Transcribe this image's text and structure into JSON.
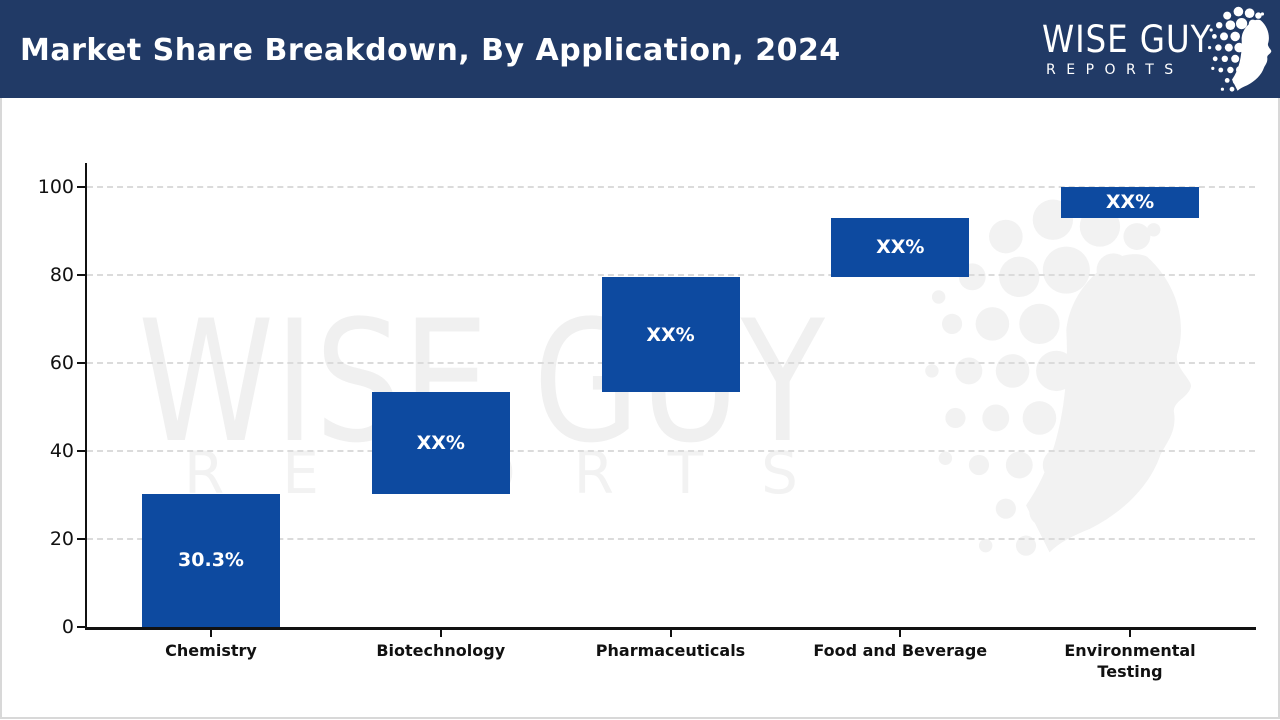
{
  "header": {
    "title": "Market Share Breakdown, By Application, 2024",
    "bg_color": "#213A66",
    "logo": {
      "line1": "WISE GUY",
      "line2": "REPORTS"
    }
  },
  "watermark": {
    "line1": "WISE GUY",
    "line2": "REPORTS"
  },
  "chart_data": {
    "type": "bar",
    "subtype": "waterfall",
    "title": "Market Share Breakdown, By Application, 2024",
    "categories": [
      "Chemistry",
      "Biotechnology",
      "Pharmaceuticals",
      "Food and Beverage",
      "Environmental\nTesting"
    ],
    "series": [
      {
        "name": "Market share (%)",
        "starts": [
          0,
          30.3,
          53.3,
          79.6,
          93.0
        ],
        "ends": [
          30.3,
          53.3,
          79.6,
          93.0,
          100.0
        ]
      }
    ],
    "bar_labels": [
      "30.3%",
      "XX%",
      "XX%",
      "XX%",
      "XX%"
    ],
    "y_ticks": [
      0,
      20,
      40,
      60,
      80,
      100
    ],
    "ylim": [
      0,
      105.5
    ],
    "xlabel": "",
    "ylabel": "",
    "legend": "none",
    "grid": {
      "horizontal": true,
      "style": "dashed",
      "color": "#DBDBDB"
    },
    "bar_color": "#0D4AA0",
    "bar_label_color": "#FFFFFF",
    "axis_color": "#111111"
  }
}
